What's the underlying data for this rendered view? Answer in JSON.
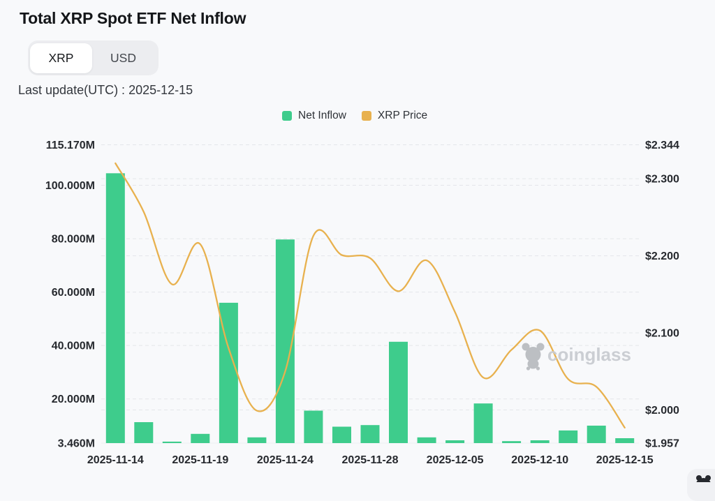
{
  "header": {
    "title": "Total XRP Spot ETF Net Inflow",
    "toggle": {
      "options": [
        "XRP",
        "USD"
      ],
      "active": "XRP"
    },
    "last_update": "Last update(UTC) : 2025-12-15"
  },
  "legend": [
    {
      "label": "Net Inflow",
      "color": "#3ecc8c"
    },
    {
      "label": "XRP Price",
      "color": "#e8b14e"
    }
  ],
  "watermark": {
    "text": "coinglass"
  },
  "chart_data": {
    "type": "bar+line",
    "title": "Total XRP Spot ETF Net Inflow",
    "x_axis": {
      "num_points": 19,
      "tick_labels": [
        {
          "index": 0,
          "label": "2025-11-14"
        },
        {
          "index": 3,
          "label": "2025-11-19"
        },
        {
          "index": 6,
          "label": "2025-11-24"
        },
        {
          "index": 9,
          "label": "2025-11-28"
        },
        {
          "index": 12,
          "label": "2025-12-05"
        },
        {
          "index": 15,
          "label": "2025-12-10"
        },
        {
          "index": 18,
          "label": "2025-12-15"
        }
      ]
    },
    "series": [
      {
        "name": "Net Inflow",
        "type": "bar",
        "axis": "left",
        "unit": "M XRP",
        "color": "#3ecc8c",
        "values": [
          104.5,
          11.3,
          4,
          6.9,
          56,
          5.6,
          79.7,
          15.6,
          9.6,
          10.2,
          41.4,
          5.6,
          4.5,
          18.3,
          4.2,
          4.5,
          8.2,
          10,
          5.3
        ]
      },
      {
        "name": "XRP Price",
        "type": "line",
        "axis": "right",
        "unit": "USD",
        "color": "#e8b14e",
        "values": [
          2.32,
          2.257,
          2.163,
          2.215,
          2.08,
          1.999,
          2.05,
          2.226,
          2.201,
          2.197,
          2.154,
          2.194,
          2.127,
          2.042,
          2.078,
          2.103,
          2.04,
          2.03,
          1.977
        ]
      }
    ],
    "left_axis": {
      "min": 3.46,
      "max": 115.17,
      "tick_labels": [
        "115.170M",
        "100.000M",
        "80.000M",
        "60.000M",
        "40.000M",
        "20.000M",
        "3.460M"
      ],
      "tick_values": [
        115.17,
        100,
        80,
        60,
        40,
        20,
        3.46
      ]
    },
    "right_axis": {
      "min": 1.957,
      "max": 2.344,
      "tick_labels": [
        "$2.344",
        "$2.300",
        "$2.200",
        "$2.100",
        "$2.000",
        "$1.957"
      ],
      "tick_values": [
        2.344,
        2.3,
        2.2,
        2.1,
        2.0,
        1.957
      ]
    },
    "grid": {
      "style": "dashed",
      "color": "#e4e6ea"
    }
  }
}
